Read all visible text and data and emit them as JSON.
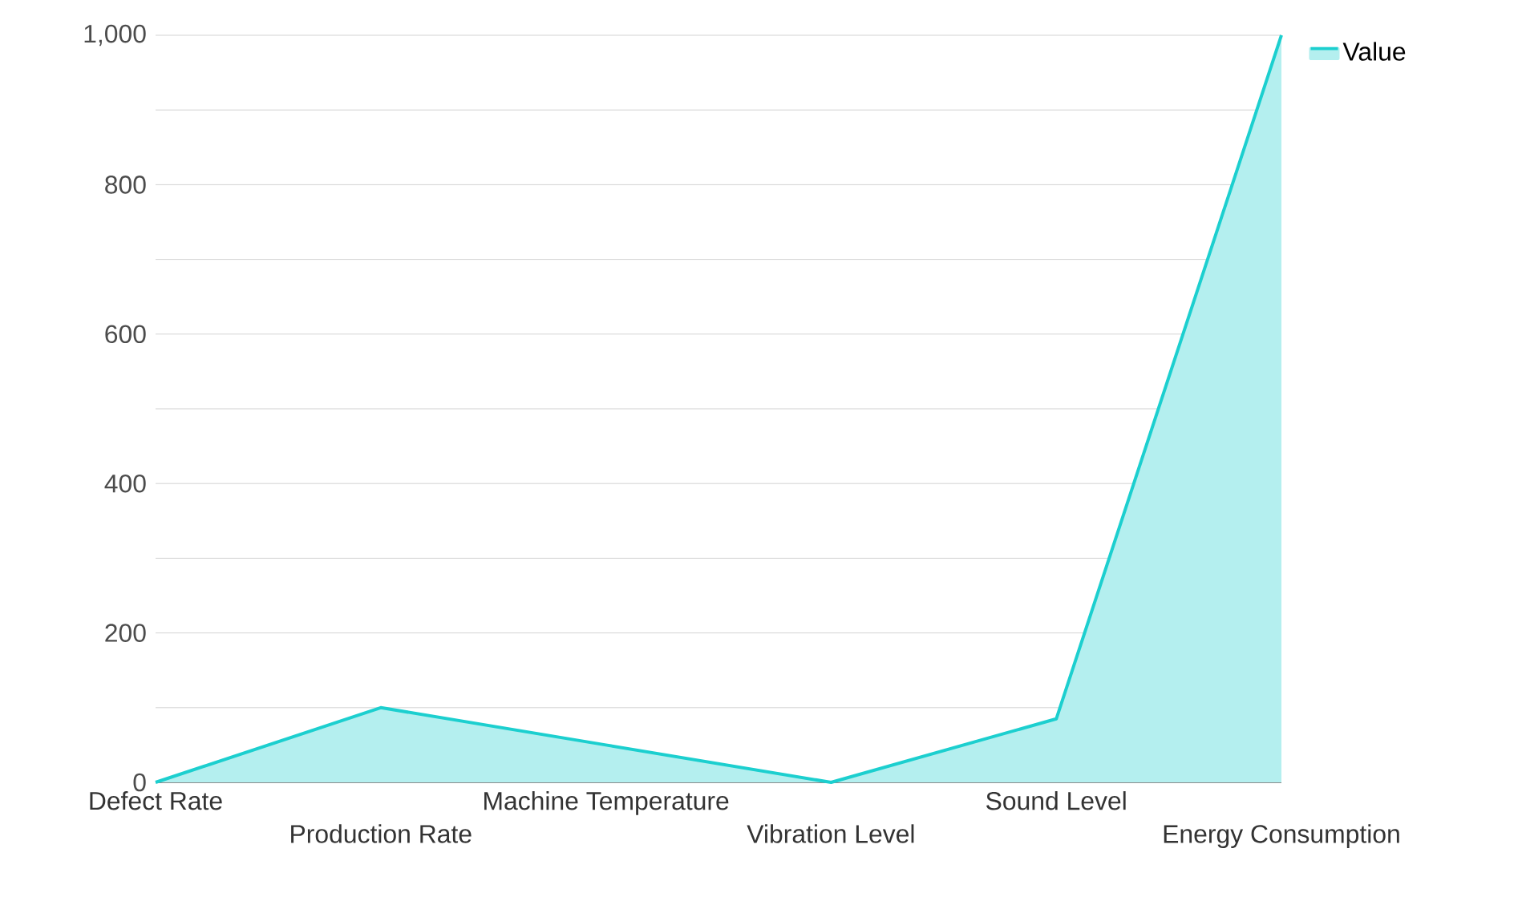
{
  "chart_data": {
    "type": "area",
    "categories": [
      "Defect Rate",
      "Production Rate",
      "Machine Temperature",
      "Vibration Level",
      "Sound Level",
      "Energy Consumption"
    ],
    "series": [
      {
        "name": "Value",
        "color": "#1ccfcf",
        "values": [
          0,
          100,
          50,
          0,
          85,
          1000
        ]
      }
    ],
    "ylim": [
      0,
      1000
    ],
    "yticks": [
      0,
      {
        "value": 100,
        "label": null
      },
      200,
      {
        "value": 300,
        "label": null
      },
      400,
      {
        "value": 500,
        "label": null
      },
      600,
      {
        "value": 700,
        "label": null
      },
      800,
      {
        "value": 900,
        "label": null
      },
      {
        "value": 1000,
        "label": "1,000"
      }
    ],
    "grid": "y",
    "legend": "top right"
  }
}
